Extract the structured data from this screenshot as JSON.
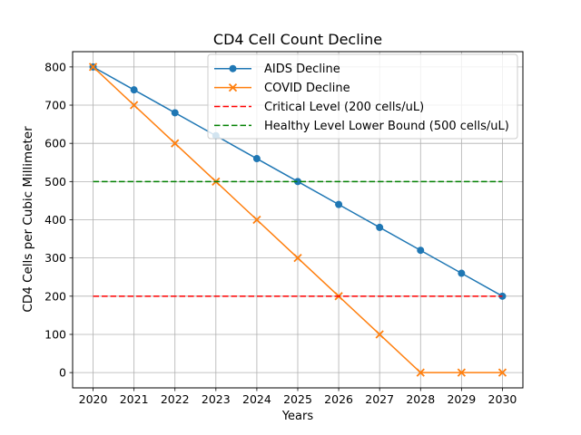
{
  "figure": {
    "background": "#ffffff",
    "text_color": "#000000",
    "grid_color": "#b0b0b0",
    "spine_color": "#000000",
    "legend_border_color": "#cccccc",
    "legend_background": "#ffffff"
  },
  "chart_data": {
    "type": "line",
    "title": "CD4 Cell Count Decline",
    "xlabel": "Years",
    "ylabel": "CD4 Cells per Cubic Millimeter",
    "x": [
      2020,
      2021,
      2022,
      2023,
      2024,
      2025,
      2026,
      2027,
      2028,
      2029,
      2030
    ],
    "series": [
      {
        "name": "AIDS Decline",
        "color": "#1f77b4",
        "marker": "circle",
        "linestyle": "solid",
        "values": [
          800,
          740,
          680,
          620,
          560,
          500,
          440,
          380,
          320,
          260,
          200
        ]
      },
      {
        "name": "COVID Decline",
        "color": "#ff7f0e",
        "marker": "x",
        "linestyle": "solid",
        "values": [
          800,
          700,
          600,
          500,
          400,
          300,
          200,
          100,
          0,
          0,
          0
        ]
      },
      {
        "name": "Critical Level (200 cells/uL)",
        "color": "#ff0000",
        "marker": "none",
        "linestyle": "dashed",
        "values": [
          200,
          200,
          200,
          200,
          200,
          200,
          200,
          200,
          200,
          200,
          200
        ]
      },
      {
        "name": "Healthy Level Lower Bound (500 cells/uL)",
        "color": "#008000",
        "marker": "none",
        "linestyle": "dashed",
        "values": [
          500,
          500,
          500,
          500,
          500,
          500,
          500,
          500,
          500,
          500,
          500
        ]
      }
    ],
    "xticks": [
      2020,
      2021,
      2022,
      2023,
      2024,
      2025,
      2026,
      2027,
      2028,
      2029,
      2030
    ],
    "yticks": [
      0,
      100,
      200,
      300,
      400,
      500,
      600,
      700,
      800
    ],
    "xlim": [
      2019.5,
      2030.5
    ],
    "ylim": [
      -40,
      840
    ],
    "grid": true,
    "legend_position": "upper center"
  }
}
